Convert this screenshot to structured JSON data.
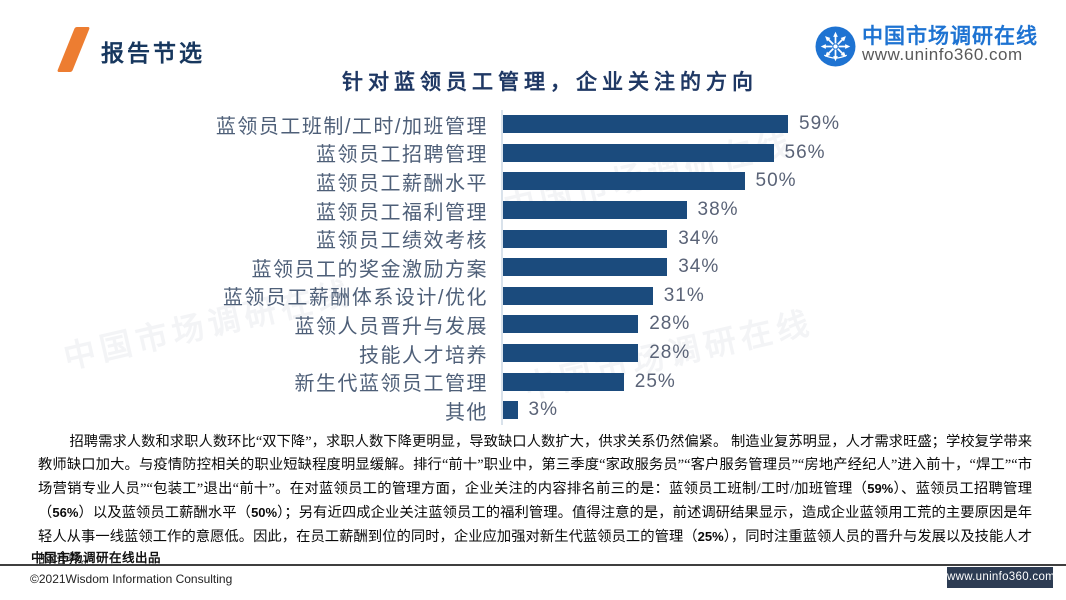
{
  "header": {
    "title": "报告节选"
  },
  "logo": {
    "name": "中国市场调研在线",
    "url": "www.uninfo360.com",
    "brand_blue": "#1E73D2"
  },
  "watermark": "中国市场调研在线",
  "chart_data": {
    "type": "bar",
    "orientation": "horizontal",
    "title": "针对蓝领员工管理，企业关注的方向",
    "categories": [
      "蓝领员工班制/工时/加班管理",
      "蓝领员工招聘管理",
      "蓝领员工薪酬水平",
      "蓝领员工福利管理",
      "蓝领员工绩效考核",
      "蓝领员工的奖金激励方案",
      "蓝领员工薪酬体系设计/优化",
      "蓝领人员晋升与发展",
      "技能人才培养",
      "新生代蓝领员工管理",
      "其他"
    ],
    "values": [
      59,
      56,
      50,
      38,
      34,
      34,
      31,
      28,
      28,
      25,
      3
    ],
    "value_labels": [
      "59%",
      "56%",
      "50%",
      "38%",
      "34%",
      "34%",
      "31%",
      "28%",
      "28%",
      "25%",
      "3%"
    ],
    "unit": "%",
    "xlim": [
      0,
      62
    ],
    "bar_color": "#1B4B7D",
    "label_color": "#4E5F78",
    "data_label_position": "outside-end",
    "grid": false,
    "legend": false
  },
  "analysis": {
    "segments": [
      {
        "text": "招聘需求人数和求职人数环比“双下降”，求职人数下降更明显，导致缺口人数扩大，供求关系仍然偏紧。 制造业复苏明显，人才需求旺盛；学校复学带来教师缺口加大。与疫情防控相关的职业短缺程度明显缓解。排行“前十”职业中，第三季度“家政服务员”“客户服务管理员”“房地产经纪人”进入前十，“焊工”“市场营销专业人员”“包装工”退出“前十”。在对蓝领员工的管理方面，企业关注的内容排名前三的是：蓝领员工班制/工时/加班管理（",
        "bold": false
      },
      {
        "text": "59%",
        "bold": true
      },
      {
        "text": "）、蓝领员工招聘管理（",
        "bold": false
      },
      {
        "text": "56%",
        "bold": true
      },
      {
        "text": "）以及蓝领员工薪酬水平（",
        "bold": false
      },
      {
        "text": "50%",
        "bold": true
      },
      {
        "text": "）；另有近四成企业关注蓝领员工的福利管理。值得注意的是，前述调研结果显示，造成企业蓝领用工荒的主要原因是年轻人从事一线蓝领工作的意愿低。因此，在员工薪酬到位的同时，企业应加强对新生代蓝领员工的管理（",
        "bold": false
      },
      {
        "text": "25%",
        "bold": true
      },
      {
        "text": "），同时注重蓝领人员的晋升与发展以及技能人才的培养。",
        "bold": false
      }
    ]
  },
  "footer": {
    "produced_by": "中国市场调研在线出品",
    "copyright": "©2021Wisdom Information Consulting",
    "site_badge": "www.uninfo360.com"
  }
}
